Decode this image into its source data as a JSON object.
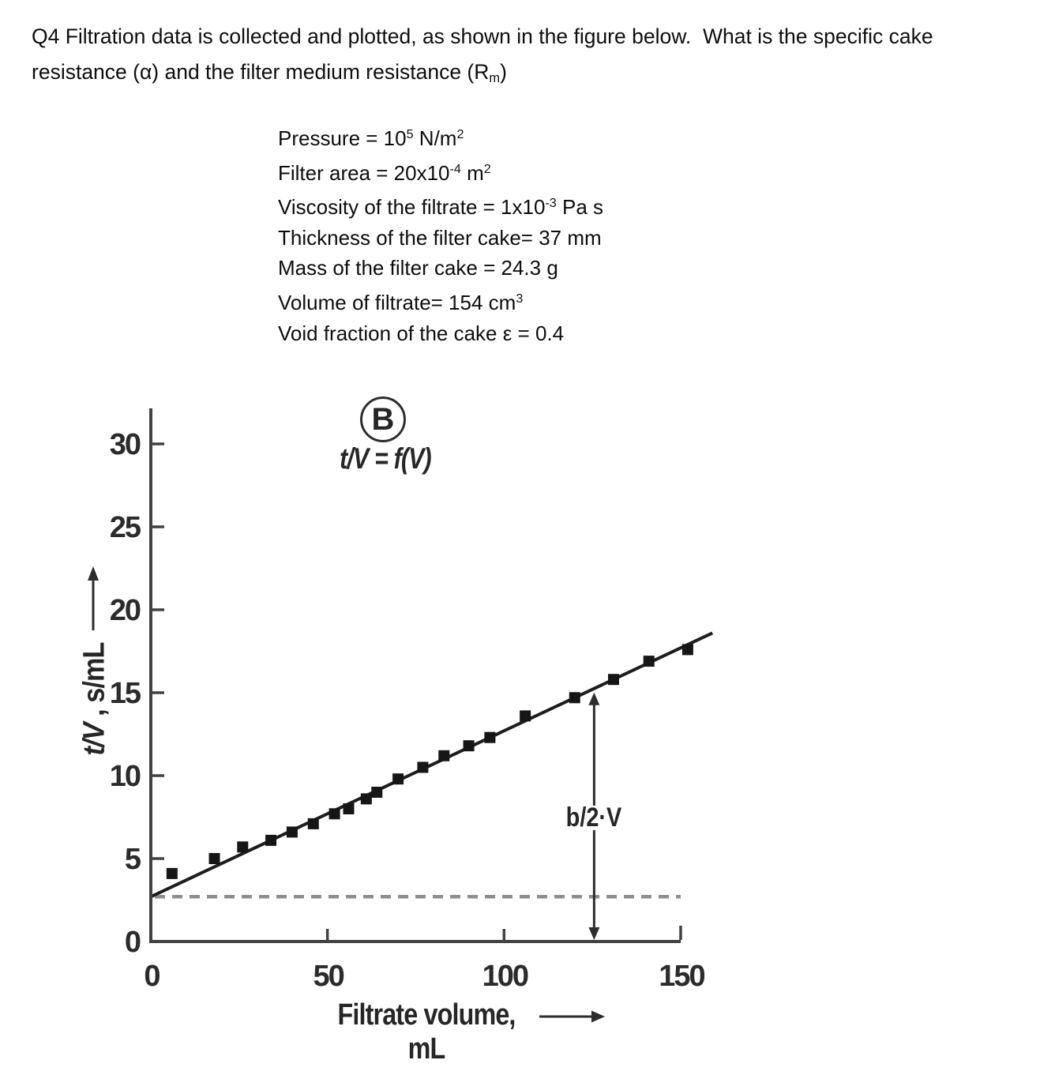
{
  "question": {
    "lines": [
      [
        {
          "t": "Q4 Filtration data is collected and plotted, as shown in the figure below.  What is the specific cake"
        }
      ],
      [
        {
          "t": "resistance (α) and the filter medium resistance (R"
        },
        {
          "t": "m",
          "sub": true
        },
        {
          "t": ")"
        }
      ]
    ]
  },
  "given": {
    "lines": [
      [
        {
          "t": "Pressure = 10"
        },
        {
          "t": "5",
          "sup": true
        },
        {
          "t": " N/m"
        },
        {
          "t": "2",
          "sup": true
        }
      ],
      [
        {
          "t": "Filter area = 20x10"
        },
        {
          "t": "-4",
          "sup": true
        },
        {
          "t": " m"
        },
        {
          "t": "2",
          "sup": true
        }
      ],
      [
        {
          "t": "Viscosity of the filtrate = 1x10"
        },
        {
          "t": "-3",
          "sup": true
        },
        {
          "t": " Pa s"
        }
      ],
      [
        {
          "t": "Thickness of the filter cake= 37 mm"
        }
      ],
      [
        {
          "t": "Mass of the filter cake = 24.3 g"
        }
      ],
      [
        {
          "t": "Volume of filtrate= 154 cm"
        },
        {
          "t": "3",
          "sup": true
        }
      ],
      [
        {
          "t": "Void fraction of the cake ε = 0.4"
        }
      ]
    ]
  },
  "chart_data": {
    "type": "scatter",
    "panel_label": "B",
    "subtitle": "t/V = f(V)",
    "xlabel": "Filtrate volume, mL",
    "ylabel": "t/V , s/mL",
    "ylabel_segments": [
      {
        "t": "t/V",
        "italic": true
      },
      {
        "t": " , s/mL"
      }
    ],
    "xlim": [
      0,
      150
    ],
    "ylim": [
      0,
      30
    ],
    "xticks": [
      0,
      50,
      100,
      150
    ],
    "yticks": [
      0,
      5,
      10,
      15,
      20,
      25,
      30
    ],
    "x": [
      6,
      18,
      26,
      34,
      40,
      46,
      52,
      56,
      61,
      64,
      70,
      77,
      83,
      90,
      96,
      106,
      120,
      131,
      141,
      152
    ],
    "y": [
      4.1,
      5.0,
      5.7,
      6.1,
      6.6,
      7.1,
      7.7,
      8.0,
      8.6,
      9.0,
      9.8,
      10.5,
      11.2,
      11.8,
      12.3,
      13.6,
      14.7,
      15.8,
      16.9,
      17.6
    ],
    "fit_line": {
      "intercept": 2.7,
      "slope": 0.1,
      "x_start": 0,
      "x_end": 159
    },
    "dashed_level": 2.7,
    "annotation": {
      "label": "b/2·V",
      "x": 125.5
    },
    "marker_size": 14,
    "grid": false,
    "legend": "none"
  },
  "colors": {
    "ink": "#1d1d1d",
    "axis": "#414141",
    "dashed": "#8e8e8e",
    "figure_text": "#2b2b2b",
    "body_text": "#0d0d0d"
  }
}
